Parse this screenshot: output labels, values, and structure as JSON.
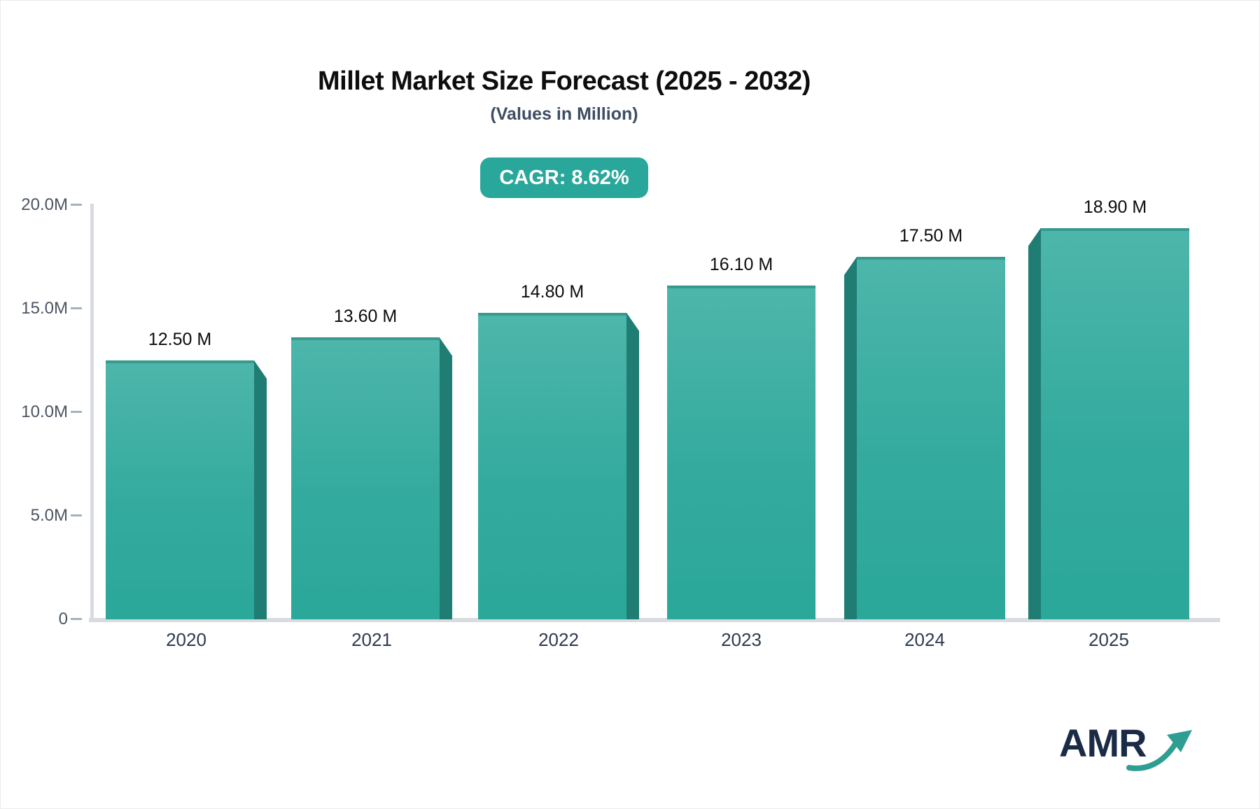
{
  "header": {
    "title": "Millet Market Size Forecast (2025 - 2032)",
    "subtitle": "(Values in Million)"
  },
  "cagr_badge": {
    "label": "CAGR: 8.62%",
    "background": "#2aa79b",
    "text_color": "#ffffff"
  },
  "logo": {
    "text": "AMR",
    "text_color": "#1a2b45",
    "arrow_color": "#2f9e92"
  },
  "chart_data": {
    "type": "bar",
    "title": "Millet Market Size Forecast (2025 - 2032)",
    "subtitle": "(Values in Million)",
    "annotation": "CAGR: 8.62%",
    "categories": [
      "2020",
      "2021",
      "2022",
      "2023",
      "2024",
      "2025"
    ],
    "values": [
      12.5,
      13.6,
      14.8,
      16.1,
      17.5,
      18.9
    ],
    "bar_labels": [
      "12.50 M",
      "13.60 M",
      "14.80 M",
      "16.10 M",
      "17.50 M",
      "18.90 M"
    ],
    "xlabel": "",
    "ylabel": "",
    "ylim": [
      0,
      20
    ],
    "yticks": [
      {
        "value": 20,
        "label": "20.0M"
      },
      {
        "value": 15,
        "label": "15.0M"
      },
      {
        "value": 10,
        "label": "10.0M"
      },
      {
        "value": 5,
        "label": "5.0M"
      },
      {
        "value": 0,
        "label": "0"
      }
    ],
    "grid": false,
    "legend": false,
    "bar_bevel_sides": [
      "right",
      "right",
      "right",
      "none",
      "left",
      "left"
    ],
    "colors": {
      "bar_top": "#4db6ab",
      "bar_bottom": "#2aa89a",
      "bar_top_edge": "#38998f",
      "bar_side": "#1f7d74",
      "axis_line": "#d8dbe0",
      "tick_dash": "#a9b1ba",
      "tick_label": "#4b5563",
      "category_label": "#2e3b4e",
      "value_label": "#0c0c0c"
    }
  }
}
